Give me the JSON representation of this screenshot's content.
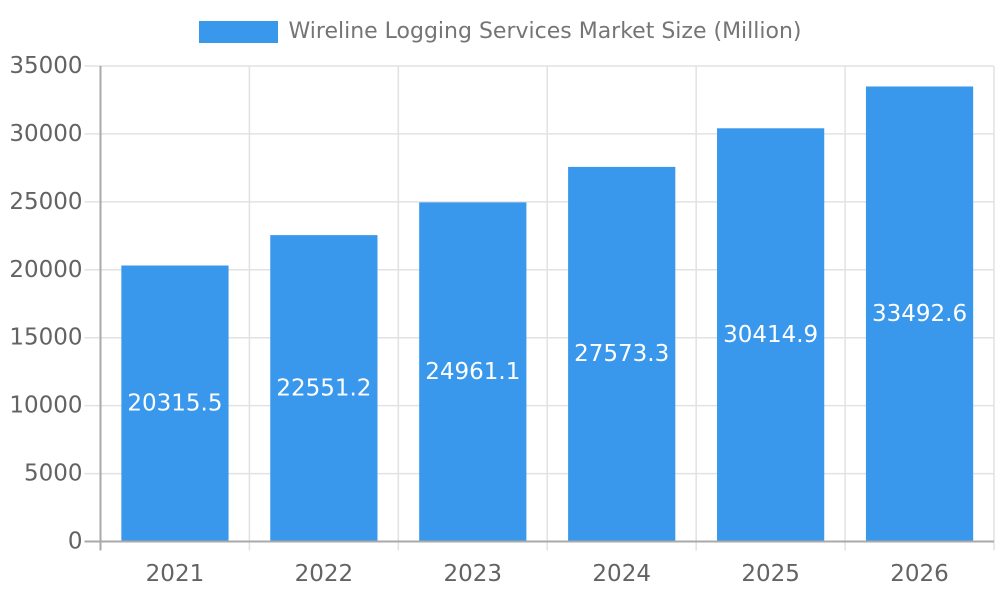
{
  "chart_data": {
    "type": "bar",
    "title": "Wireline Logging Services Market Size (Million)",
    "legend": {
      "label": "Wireline Logging Services Market Size (Million)",
      "position": "top-center"
    },
    "categories": [
      "2021",
      "2022",
      "2023",
      "2024",
      "2025",
      "2026"
    ],
    "series": [
      {
        "name": "Wireline Logging Services Market Size (Million)",
        "values": [
          20315.5,
          22551.2,
          24961.1,
          27573.3,
          30414.9,
          33492.6
        ]
      }
    ],
    "value_labels": [
      "20315.5",
      "22551.2",
      "24961.1",
      "27573.3",
      "30414.9",
      "33492.6"
    ],
    "xlabel": "",
    "ylabel": "",
    "ylim": [
      0,
      35000
    ],
    "yticks": [
      0,
      5000,
      10000,
      15000,
      20000,
      25000,
      30000,
      35000
    ],
    "ytick_labels": [
      "0",
      "5000",
      "10000",
      "15000",
      "20000",
      "25000",
      "30000",
      "35000"
    ],
    "grid": true,
    "value_label_position": "inside-middle",
    "colors": {
      "bar": "#3998EC",
      "bar_label": "#FFFFFF",
      "grid_line": "#E2E2E2",
      "axis_line": "#A9A9A9",
      "tick_label": "#636363",
      "legend_text": "#757575",
      "background": "#FFFFFF"
    }
  }
}
